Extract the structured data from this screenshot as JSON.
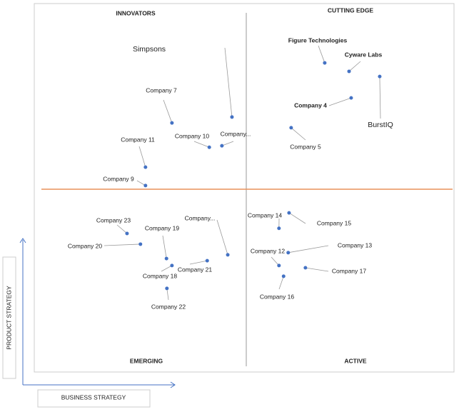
{
  "chart_data": {
    "type": "scatter",
    "quadrant_labels": [
      "INNOVATORS",
      "CUTTING EDGE",
      "EMERGING",
      "ACTIVE"
    ],
    "x_label": "BUSINESS STRATEGY",
    "y_label": "PRODUCT STRATEGY",
    "xlim": [
      0,
      100
    ],
    "ylim": [
      0,
      100
    ],
    "color": "#4472c4",
    "labels": [
      "Simpsons",
      "Figure Technologies",
      "Cyware Labs",
      "BurstIQ",
      "Company 4",
      "Company 5",
      "Company 7",
      "Company 10",
      "Company...",
      "Company 11",
      "Company 9",
      "Company 23",
      "Company 19",
      "Company 20",
      "Company...",
      "Company 21",
      "Company 18",
      "Company 22",
      "Company 14",
      "Company 15",
      "Company 13",
      "Company 12",
      "Company 17",
      "Company 16"
    ],
    "x": [
      47.1,
      69.2,
      75.0,
      82.3,
      75.5,
      61.2,
      32.8,
      41.7,
      44.7,
      26.5,
      26.5,
      22.1,
      31.5,
      25.3,
      46.1,
      41.2,
      32.8,
      31.6,
      58.3,
      60.7,
      60.5,
      58.3,
      64.6,
      59.4
    ],
    "y": [
      69.2,
      83.9,
      81.6,
      80.2,
      74.4,
      66.3,
      67.6,
      61.0,
      61.4,
      55.6,
      50.6,
      37.6,
      30.8,
      34.7,
      31.8,
      30.2,
      28.9,
      22.7,
      39.0,
      43.2,
      32.4,
      28.9,
      28.3,
      26.0
    ]
  }
}
